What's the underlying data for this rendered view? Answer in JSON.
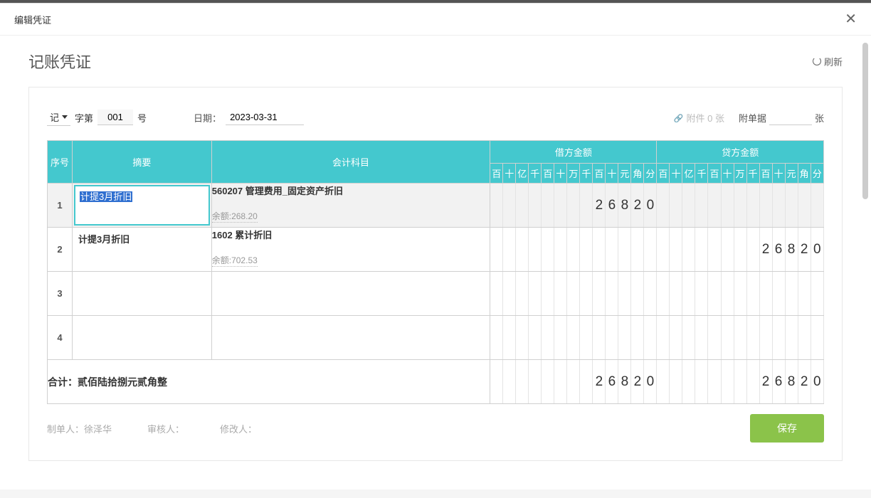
{
  "dialog": {
    "title": "编辑凭证",
    "page_title": "记账凭证",
    "refresh_label": "刷新"
  },
  "meta": {
    "type_prefix": "记",
    "type_middle": "字第",
    "number": "001",
    "type_suffix": "号",
    "date_label": "日期：",
    "date": "2023-03-31",
    "attach_label": "附件 0 张",
    "sheets_label": "附单据",
    "sheets_unit": "张"
  },
  "columns": {
    "seq": "序号",
    "summary": "摘要",
    "subject": "会计科目",
    "debit": "借方金额",
    "credit": "贷方金额",
    "digit_labels": [
      "百",
      "十",
      "亿",
      "千",
      "百",
      "十",
      "万",
      "千",
      "百",
      "十",
      "元",
      "角",
      "分"
    ]
  },
  "rows": [
    {
      "seq": "1",
      "summary": "计提3月折旧",
      "subject": "560207 管理费用_固定资产折旧",
      "balance_label": "余额:",
      "balance": "268.20",
      "debit": "26820",
      "credit": "",
      "editing": true
    },
    {
      "seq": "2",
      "summary": "计提3月折旧",
      "subject": "1602 累计折旧",
      "balance_label": "余额:",
      "balance": "702.53",
      "debit": "",
      "credit": "26820",
      "editing": false
    },
    {
      "seq": "3",
      "summary": "",
      "subject": "",
      "balance_label": "",
      "balance": "",
      "debit": "",
      "credit": "",
      "editing": false
    },
    {
      "seq": "4",
      "summary": "",
      "subject": "",
      "balance_label": "",
      "balance": "",
      "debit": "",
      "credit": "",
      "editing": false
    }
  ],
  "total": {
    "label_prefix": "合计：",
    "chinese": "贰佰陆拾捌元贰角整",
    "debit": "26820",
    "credit": "26820"
  },
  "footer": {
    "preparer_label": "制单人：",
    "preparer": "徐泽华",
    "auditor_label": "审核人：",
    "auditor": "",
    "modifier_label": "修改人：",
    "modifier": "",
    "save_label": "保存"
  },
  "style": {
    "header_bg": "#44c8ce",
    "header_text": "#ffffff",
    "border_color": "#d0d0d0",
    "digit_border_blue": "#7bb6e8",
    "digit_border_red": "#d88",
    "save_btn_bg": "#8bc34a",
    "selection_bg": "#2f6fd0"
  }
}
